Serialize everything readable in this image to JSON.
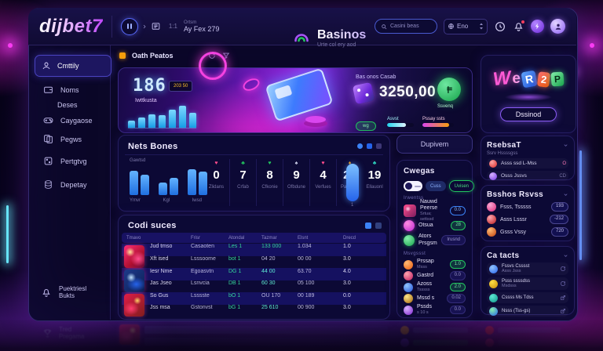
{
  "colors": {
    "accent_purple": "#a855f7",
    "accent_cyan": "#22d3ee",
    "accent_green": "#22c55e",
    "accent_magenta": "#f542e0",
    "accent_blue": "#3b82f6",
    "bar_blue": "#2f8de4",
    "panel_bg": "#0c0935"
  },
  "header": {
    "logo": "dijbet7",
    "scale_label": "1:1",
    "user_caption": "Ortsm",
    "user_name": "Ay Fex 279",
    "brand": "Basinos",
    "brand_tagline": "Urte col ery aod",
    "search_placeholder": "Casini beas",
    "language": "Eno"
  },
  "sidebar": {
    "items": [
      {
        "label": "Cmttily"
      },
      {
        "label": "Noms"
      },
      {
        "label": "Deses"
      },
      {
        "label": "Caygaose"
      },
      {
        "label": "Pegws"
      },
      {
        "label": "Pertgtvg"
      },
      {
        "label": "Depetay"
      }
    ],
    "footer": {
      "line1": "Puektriesl",
      "line2": "Bukts"
    },
    "reflection_item": {
      "line1": "Tred",
      "line2": "Pregama"
    }
  },
  "main": {
    "section_label": "Oath Peatos",
    "banner": {
      "counter": "186",
      "counter_badge": "203 50",
      "counter_caption": "Iwttkusta",
      "bars": [
        30,
        44,
        58,
        52,
        78,
        92,
        64
      ],
      "balance_caption": "Bas onos Casab",
      "balance": "3250,00",
      "bonus_label": "Ssvenq",
      "tag": "wg",
      "progress1_label": "Asvst",
      "progress1_value": 72,
      "progress2_label": "Pssay ssts",
      "progress2_value": 86
    },
    "stats": {
      "title": "Nets Bones",
      "chart_caption": "Gawtsd",
      "chart_bars": [
        78,
        64,
        40,
        55,
        82,
        74
      ],
      "chart_labels": [
        "Ymvr",
        "Kgl",
        "Iwsd"
      ],
      "columns": [
        {
          "glyph": "♥",
          "value": "0",
          "label": "Zlidans"
        },
        {
          "glyph": "♣",
          "value": "7",
          "label": "Crfab"
        },
        {
          "glyph": "♥",
          "value": "8",
          "label": "Cfkonie"
        },
        {
          "glyph": "♠",
          "value": "9",
          "label": "Ofbdune"
        },
        {
          "glyph": "♥",
          "value": "4",
          "label": "Verfues"
        },
        {
          "glyph": "♦",
          "value": "20",
          "label": "Paysdas"
        }
      ],
      "bar_value": 92,
      "bar_label": "1",
      "last_column": {
        "glyph": "♣",
        "value": "19",
        "label": "Ellauonl"
      }
    },
    "table": {
      "title": "Codi suces",
      "headers": [
        "Tmavo",
        "Frisr",
        "Atondal",
        "Tazmar",
        "Elsnt",
        "Drecd"
      ],
      "rows": [
        {
          "name": "Jud tmso",
          "code": "Casaoten",
          "amount": "Les 1",
          "total": "133 000",
          "time": "1.034",
          "count": "1.0",
          "odds": "01 50"
        },
        {
          "name": "Xft ised",
          "code": "Lsssoome",
          "amount": "bot 1",
          "total": "04 20",
          "time": "00 00",
          "count": "3.0",
          "odds": "61 00"
        },
        {
          "name": "Iesr Nme",
          "code": "Egoasvtn",
          "amount": "DG 1",
          "total": "44 00",
          "time": "63.70",
          "count": "4.0",
          "odds": "01 50"
        },
        {
          "name": "Jas Jseo",
          "code": "Lsnvcia",
          "amount": "DB 1",
          "total": "60 30",
          "time": "05 100",
          "count": "3.0",
          "odds": "01 70"
        },
        {
          "name": "So Gus",
          "code": "Lsssste",
          "amount": "bO 1",
          "total": "OU 170",
          "time": "00 189",
          "count": "0.0",
          "odds": "61 50"
        },
        {
          "name": "Jss msa",
          "code": "Gstonvst",
          "amount": "bG 1",
          "total": "25 610",
          "time": "00 900",
          "count": "3.0",
          "odds": "E1 40"
        }
      ]
    }
  },
  "aside": {
    "top_button": "Dupivem",
    "panel_title": "Cwegas",
    "tab1": "Cuss",
    "tab2": "Uvisen",
    "section1": "Irwentss",
    "featured": [
      {
        "name": "Nauwd Peerse",
        "sub": "Srtua; settssd",
        "badge": "0.0"
      },
      {
        "name": "Otsua",
        "badge": "28"
      },
      {
        "name": "Ators Prsgsm",
        "action": "Irusnd"
      }
    ],
    "section2": "Msvgssst",
    "members": [
      {
        "name": "Prssap",
        "sub": "Msss",
        "badge": "1.0"
      },
      {
        "name": "Gastrd",
        "sub": "",
        "badge": "0.0"
      },
      {
        "name": "Azoss",
        "sub": "Tsssss",
        "badge": "2.0"
      },
      {
        "name": "Mssd s",
        "sub": "",
        "badge": "0.02"
      },
      {
        "name": "Pssds",
        "sub": "s 10 s",
        "badge": "0.0"
      }
    ]
  },
  "rightcol": {
    "promo": {
      "letters": [
        "W",
        "e",
        "R",
        "2",
        "P"
      ],
      "button": "Dssinod"
    },
    "panel1": {
      "title": "RsebsaT",
      "caption": "Ssrv Hssssgss",
      "items": [
        {
          "label": "Asss ssd L-Mss",
          "badge": "O"
        },
        {
          "label": "Osss Jssvs",
          "badge": "CD"
        }
      ]
    },
    "panel2": {
      "title": "Bsshos Rsvss",
      "items": [
        {
          "label": "Fsss, Tsssss",
          "badge": "193"
        },
        {
          "label": "Asss Lsssr",
          "badge": "-212"
        },
        {
          "label": "Gsss Vssy",
          "badge": "720"
        }
      ]
    },
    "panel3": {
      "title": "Ca tacts",
      "items": [
        {
          "label": "Fssvs Csssst",
          "sub": "Asss Jsss"
        },
        {
          "label": "Psss ssssdss",
          "sub": "Msdsss"
        },
        {
          "label": "Cssss Ms Tdss",
          "sub": ""
        },
        {
          "label": "Nsss (Tss-gs)",
          "sub": ""
        }
      ]
    }
  }
}
